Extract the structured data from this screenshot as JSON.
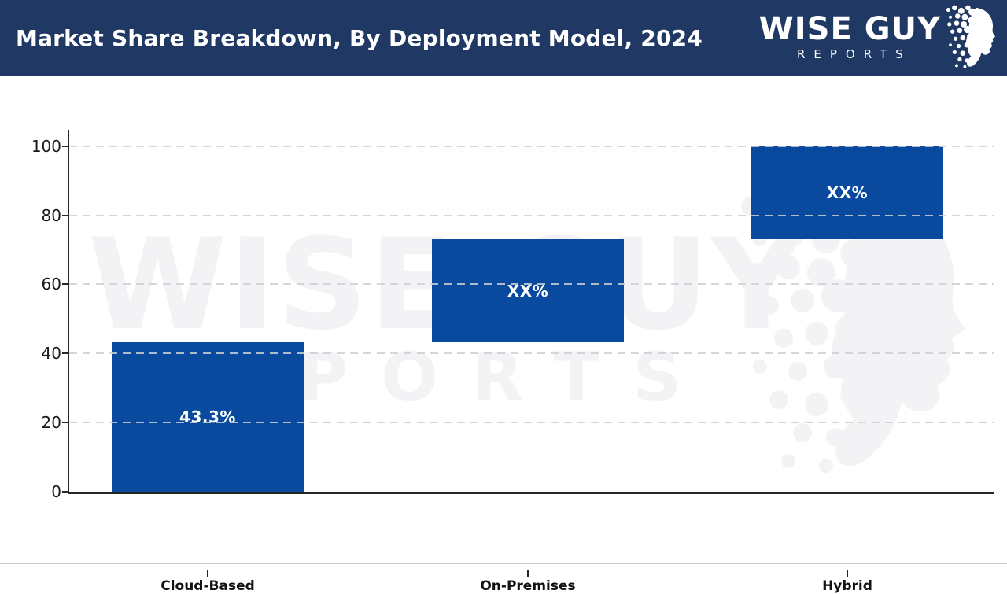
{
  "header": {
    "title": "Market Share Breakdown, By Deployment Model, 2024",
    "bg_color": "#203864",
    "logo": {
      "wordmark": "WISE GUY",
      "subtext": "REPORTS"
    }
  },
  "watermark": {
    "wordmark": "WISE GUY",
    "subtext": "REPORTS",
    "color": "#f3f3f6"
  },
  "chart_data": {
    "type": "bar",
    "variant": "waterfall",
    "title": "Market Share Breakdown, By Deployment Model, 2024",
    "categories": [
      "Cloud-Based",
      "On-Premises",
      "Hybrid"
    ],
    "segments": [
      {
        "category": "Cloud-Based",
        "start": 0,
        "end": 43.3,
        "label": "43.3%"
      },
      {
        "category": "On-Premises",
        "start": 43.3,
        "end": 73,
        "label": "XX%"
      },
      {
        "category": "Hybrid",
        "start": 73,
        "end": 100,
        "label": "XX%"
      }
    ],
    "yticks": [
      0,
      20,
      40,
      60,
      80,
      100
    ],
    "ylim": [
      0,
      104.7
    ],
    "xlabel": "",
    "ylabel": "",
    "bar_color": "#0a4a9e",
    "bar_label_color": "#ffffff",
    "grid": {
      "axis": "y",
      "style": "dashed",
      "color": "#d3d5da",
      "drawn_over_bars": true
    },
    "axis_color": "#262626",
    "tick_label_color": "#1a1a1a",
    "legend": null
  }
}
